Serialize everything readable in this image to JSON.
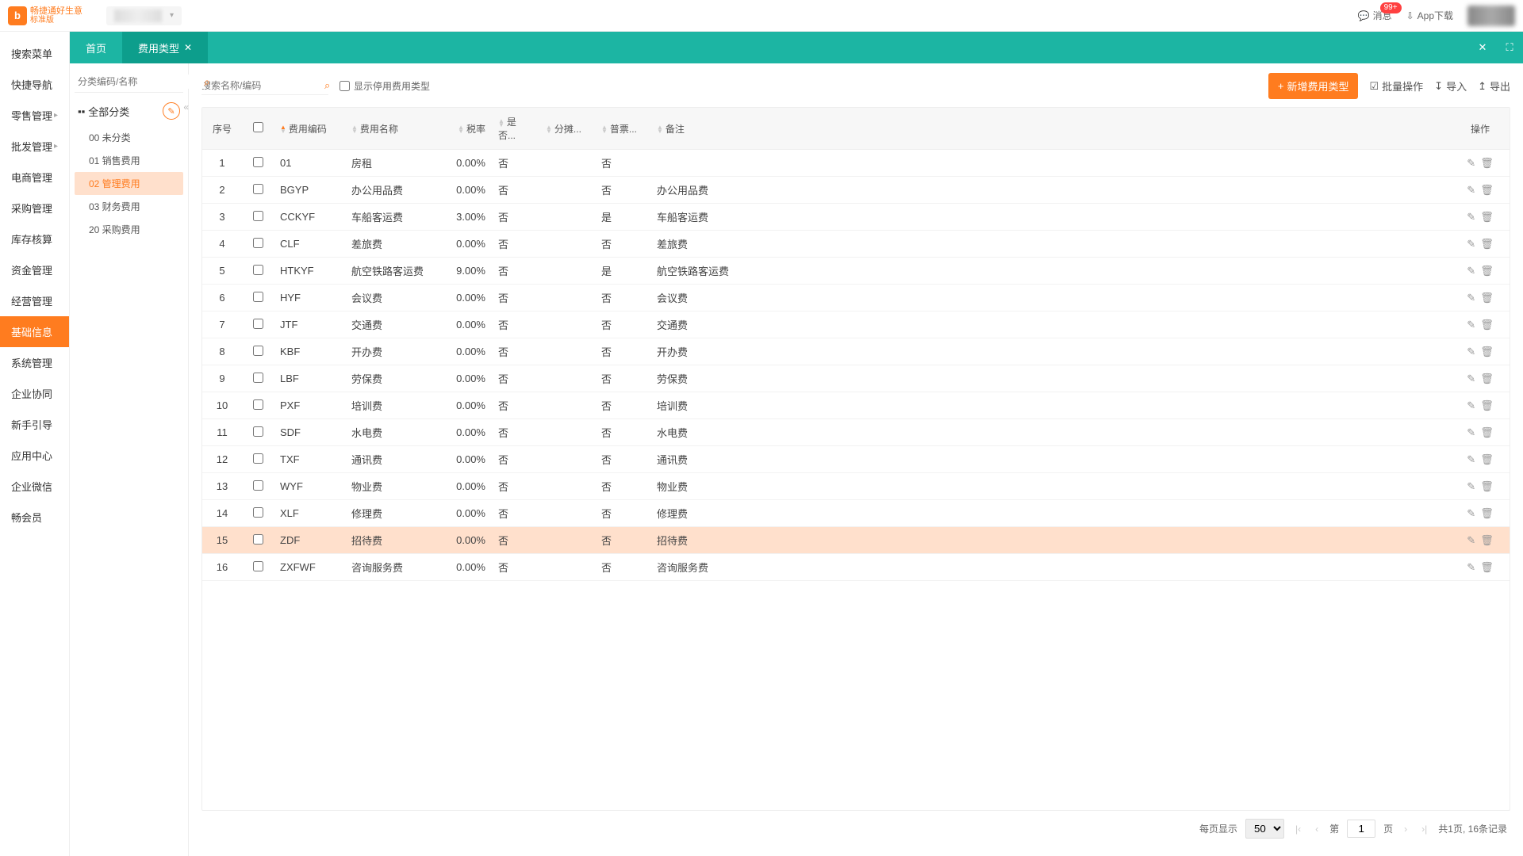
{
  "logo": {
    "brand": "畅捷通好生意",
    "edition": "标准版"
  },
  "topbar": {
    "msg_label": "消息",
    "msg_badge": "99+",
    "app_label": "App下载"
  },
  "sidebar": {
    "items": [
      {
        "label": "搜索菜单",
        "arrow": false
      },
      {
        "label": "快捷导航",
        "arrow": false
      },
      {
        "label": "零售管理",
        "arrow": true
      },
      {
        "label": "批发管理",
        "arrow": true
      },
      {
        "label": "电商管理",
        "arrow": false
      },
      {
        "label": "采购管理",
        "arrow": false
      },
      {
        "label": "库存核算",
        "arrow": false
      },
      {
        "label": "资金管理",
        "arrow": false
      },
      {
        "label": "经营管理",
        "arrow": false
      },
      {
        "label": "基础信息",
        "arrow": false,
        "active": true
      },
      {
        "label": "系统管理",
        "arrow": false
      },
      {
        "label": "企业协同",
        "arrow": false
      },
      {
        "label": "新手引导",
        "arrow": false
      },
      {
        "label": "应用中心",
        "arrow": false
      },
      {
        "label": "企业微信",
        "arrow": false
      },
      {
        "label": "畅会员",
        "arrow": false
      }
    ]
  },
  "tabs": {
    "items": [
      {
        "label": "首页"
      },
      {
        "label": "费用类型",
        "closable": true,
        "active": true
      }
    ]
  },
  "categories": {
    "search_placeholder": "分类编码/名称",
    "head": "全部分类",
    "items": [
      {
        "label": "00 未分类"
      },
      {
        "label": "01 销售费用"
      },
      {
        "label": "02 管理费用",
        "active": true
      },
      {
        "label": "03 财务费用"
      },
      {
        "label": "20 采购费用"
      }
    ]
  },
  "toolbar": {
    "search_placeholder": "搜索名称/编码",
    "show_disabled": "显示停用费用类型",
    "add": "新增费用类型",
    "batch": "批量操作",
    "import": "导入",
    "export": "导出"
  },
  "table": {
    "columns": {
      "seq": "序号",
      "code": "费用编码",
      "name": "费用名称",
      "rate": "税率",
      "bool": "是否...",
      "alloc": "分摊...",
      "ticket": "普票...",
      "remark": "备注",
      "op": "操作"
    },
    "rows": [
      {
        "seq": 1,
        "code": "01",
        "name": "房租",
        "rate": "0.00%",
        "b1": "否",
        "alloc": "",
        "ticket": "否",
        "remark": ""
      },
      {
        "seq": 2,
        "code": "BGYP",
        "name": "办公用品费",
        "rate": "0.00%",
        "b1": "否",
        "alloc": "",
        "ticket": "否",
        "remark": "办公用品费"
      },
      {
        "seq": 3,
        "code": "CCKYF",
        "name": "车船客运费",
        "rate": "3.00%",
        "b1": "否",
        "alloc": "",
        "ticket": "是",
        "remark": "车船客运费"
      },
      {
        "seq": 4,
        "code": "CLF",
        "name": "差旅费",
        "rate": "0.00%",
        "b1": "否",
        "alloc": "",
        "ticket": "否",
        "remark": "差旅费"
      },
      {
        "seq": 5,
        "code": "HTKYF",
        "name": "航空铁路客运费",
        "rate": "9.00%",
        "b1": "否",
        "alloc": "",
        "ticket": "是",
        "remark": "航空铁路客运费"
      },
      {
        "seq": 6,
        "code": "HYF",
        "name": "会议费",
        "rate": "0.00%",
        "b1": "否",
        "alloc": "",
        "ticket": "否",
        "remark": "会议费"
      },
      {
        "seq": 7,
        "code": "JTF",
        "name": "交通费",
        "rate": "0.00%",
        "b1": "否",
        "alloc": "",
        "ticket": "否",
        "remark": "交通费"
      },
      {
        "seq": 8,
        "code": "KBF",
        "name": "开办费",
        "rate": "0.00%",
        "b1": "否",
        "alloc": "",
        "ticket": "否",
        "remark": "开办费"
      },
      {
        "seq": 9,
        "code": "LBF",
        "name": "劳保费",
        "rate": "0.00%",
        "b1": "否",
        "alloc": "",
        "ticket": "否",
        "remark": "劳保费"
      },
      {
        "seq": 10,
        "code": "PXF",
        "name": "培训费",
        "rate": "0.00%",
        "b1": "否",
        "alloc": "",
        "ticket": "否",
        "remark": "培训费"
      },
      {
        "seq": 11,
        "code": "SDF",
        "name": "水电费",
        "rate": "0.00%",
        "b1": "否",
        "alloc": "",
        "ticket": "否",
        "remark": "水电费"
      },
      {
        "seq": 12,
        "code": "TXF",
        "name": "通讯费",
        "rate": "0.00%",
        "b1": "否",
        "alloc": "",
        "ticket": "否",
        "remark": "通讯费"
      },
      {
        "seq": 13,
        "code": "WYF",
        "name": "物业费",
        "rate": "0.00%",
        "b1": "否",
        "alloc": "",
        "ticket": "否",
        "remark": "物业费"
      },
      {
        "seq": 14,
        "code": "XLF",
        "name": "修理费",
        "rate": "0.00%",
        "b1": "否",
        "alloc": "",
        "ticket": "否",
        "remark": "修理费"
      },
      {
        "seq": 15,
        "code": "ZDF",
        "name": "招待费",
        "rate": "0.00%",
        "b1": "否",
        "alloc": "",
        "ticket": "否",
        "remark": "招待费",
        "highlight": true
      },
      {
        "seq": 16,
        "code": "ZXFWF",
        "name": "咨询服务费",
        "rate": "0.00%",
        "b1": "否",
        "alloc": "",
        "ticket": "否",
        "remark": "咨询服务费"
      }
    ]
  },
  "pager": {
    "per_page_label": "每页显示",
    "per_page": "50",
    "page_label_prefix": "第",
    "page": "1",
    "page_label_suffix": "页",
    "summary": "共1页, 16条记录"
  }
}
